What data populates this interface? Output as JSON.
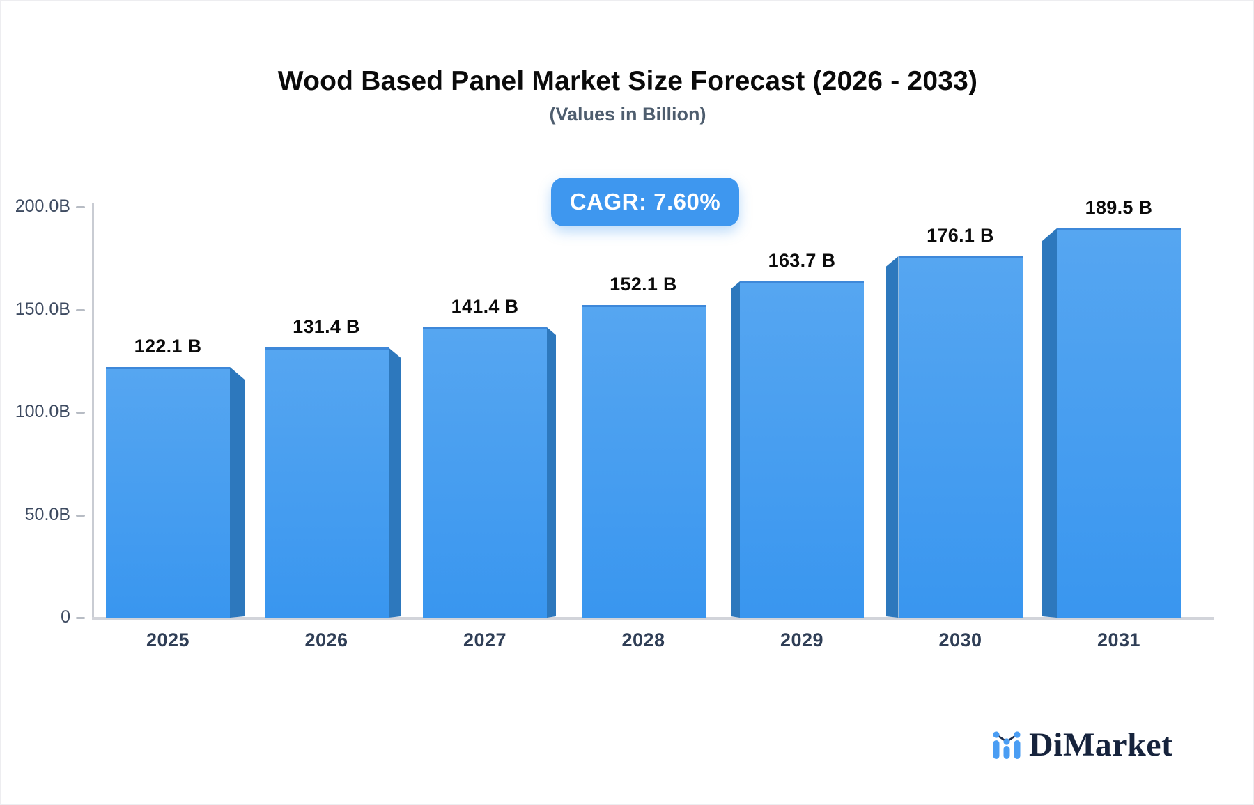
{
  "header": {
    "title": "Wood Based Panel Market Size Forecast (2026 - 2033)",
    "subtitle": "(Values in Billion)"
  },
  "badge": {
    "label": "CAGR: 7.60%"
  },
  "chart_data": {
    "type": "bar",
    "title": "Wood Based Panel Market Size Forecast (2026 - 2033)",
    "subtitle": "(Values in Billion)",
    "cagr_label": "CAGR: 7.60%",
    "categories": [
      "2025",
      "2026",
      "2027",
      "2028",
      "2029",
      "2030",
      "2031"
    ],
    "values": [
      122.1,
      131.4,
      141.4,
      152.1,
      163.7,
      176.1,
      189.5
    ],
    "value_labels": [
      "122.1 B",
      "131.4 B",
      "141.4 B",
      "152.1 B",
      "163.7 B",
      "176.1 B",
      "189.5 B"
    ],
    "y_ticks": [
      {
        "label": "0",
        "value": 0
      },
      {
        "label": "50.0B",
        "value": 50
      },
      {
        "label": "100.0B",
        "value": 100
      },
      {
        "label": "150.0B",
        "value": 150
      },
      {
        "label": "200.0B",
        "value": 200
      }
    ],
    "ylim": [
      0,
      200
    ],
    "grid": false,
    "legend": false,
    "bar_style": "3d-perspective-centered"
  },
  "logo": {
    "text": "DiMarket",
    "icon": "mini-bar-chart-icon"
  },
  "colors": {
    "accent": "#3e97ef",
    "bar_face_top": "#56a6f1",
    "bar_face_bottom": "#3996ef",
    "bar_side": "#2d78bd",
    "bar_top_edge": "#3e88d9",
    "axis": "#c9ccd3",
    "baseline": "#d2d4da",
    "title_text": "#0a0a0a",
    "subtitle_text": "#4e5d6e",
    "tick_text": "#3d4a60",
    "category_text": "#2f3e56",
    "logo_navy": "#16233c",
    "logo_blue": "#4a9df3"
  }
}
